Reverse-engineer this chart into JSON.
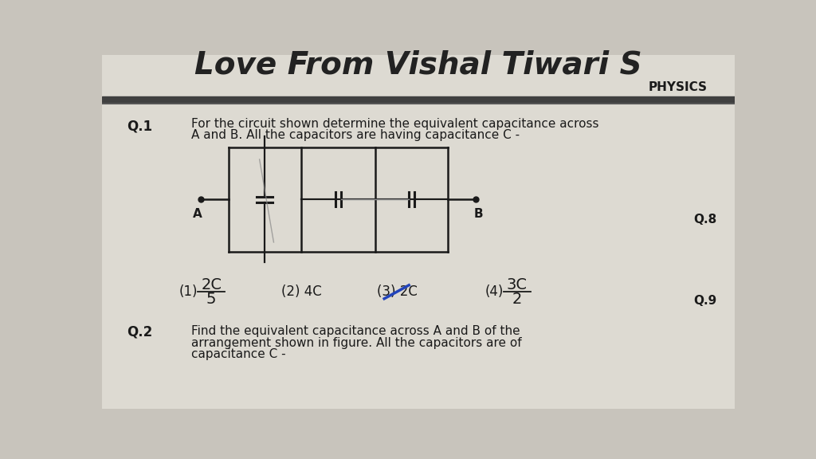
{
  "bg_color": "#c8c4bc",
  "paper_color": "#dddad2",
  "header_text": "Love From Vishal Tiwari S",
  "subject_label": "PHYSICS",
  "q1_label": "Q.1",
  "q1_text_line1": "For the circuit shown determine the equivalent capacitance across",
  "q1_text_line2": "A and B. All the capacitors are having capacitance C -",
  "q2_label": "Q.2",
  "q2_text_line1": "Find the equivalent capacitance across A and B of the",
  "q2_text_line2": "arrangement shown in figure. All the capacitors are of",
  "q2_text_line3": "capacitance C -",
  "q8_label": "Q.8",
  "q9_label": "Q.9",
  "font_color": "#1a1a1a",
  "line_color": "#1a1a1a",
  "rule_color": "#3a3a3a",
  "opt1_num": "(1)",
  "opt2_num": "(2)",
  "opt3_num": "(3)",
  "opt4_num": "(4)",
  "opt1_numer": "2C",
  "opt1_denom": "5",
  "opt2_expr": "4C",
  "opt3_expr": "2C",
  "opt4_numer": "3C",
  "opt4_denom": "2",
  "strike_color": "#2244bb"
}
